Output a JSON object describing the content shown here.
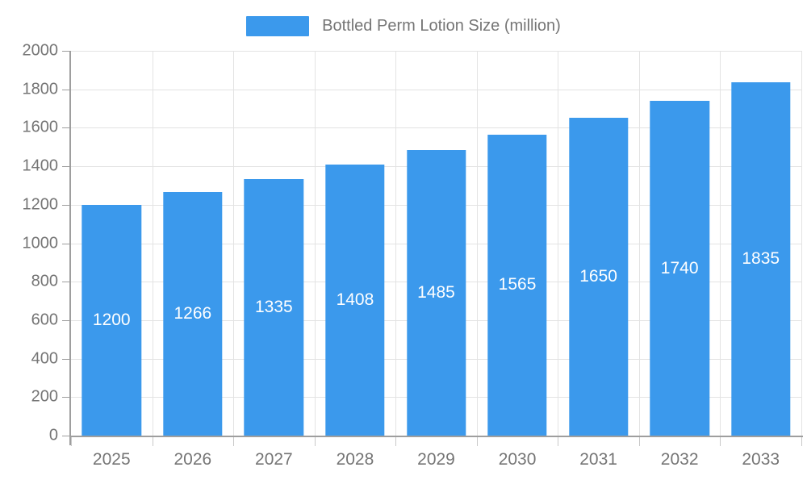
{
  "chart_data": {
    "type": "bar",
    "title": "Bottled Perm Lotion Size (million)",
    "legend_position": "top",
    "categories": [
      "2025",
      "2026",
      "2027",
      "2028",
      "2029",
      "2030",
      "2031",
      "2032",
      "2033"
    ],
    "values": [
      1200,
      1266,
      1335,
      1408,
      1485,
      1565,
      1650,
      1740,
      1835
    ],
    "value_labels": [
      "1200",
      "1266",
      "1335",
      "1408",
      "1485",
      "1565",
      "1650",
      "1740",
      "1835"
    ],
    "xlabel": "",
    "ylabel": "",
    "ylim": [
      0,
      2000
    ],
    "ytick_step": 200,
    "yticks": [
      0,
      200,
      400,
      600,
      800,
      1000,
      1200,
      1400,
      1600,
      1800,
      2000
    ],
    "grid": true,
    "colors": {
      "bar": "#3B99EC",
      "bar_value_text": "#FFFFFF",
      "axis_text": "#757575",
      "legend_text": "#757575",
      "gridline": "#E3E3E3",
      "axis_line": "#9E9E9E",
      "background": "#FFFFFF"
    }
  }
}
